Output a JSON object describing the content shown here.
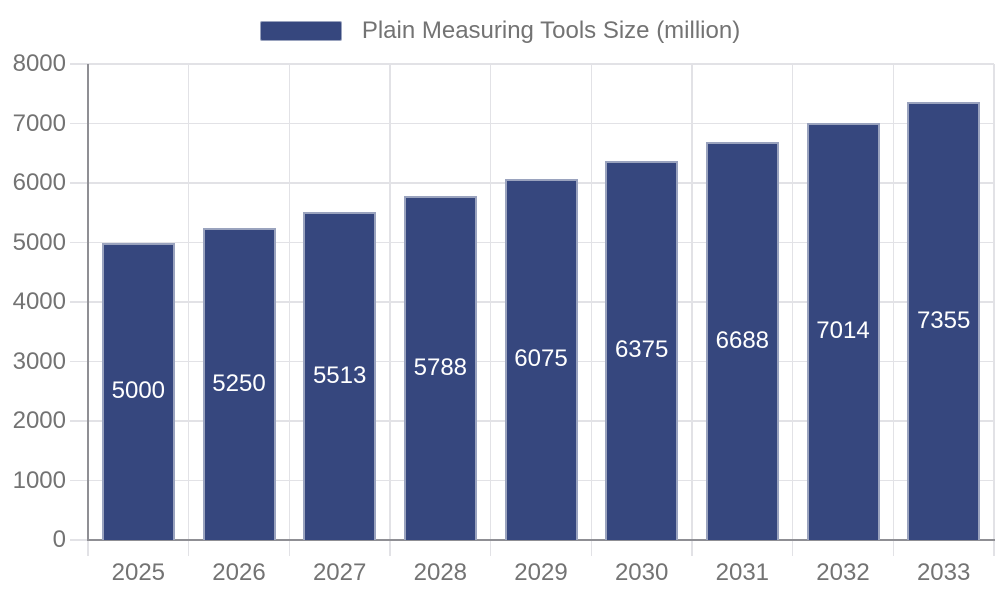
{
  "chart_data": {
    "type": "bar",
    "legend": "Plain Measuring Tools Size (million)",
    "categories": [
      "2025",
      "2026",
      "2027",
      "2028",
      "2029",
      "2030",
      "2031",
      "2032",
      "2033"
    ],
    "values": [
      5000,
      5250,
      5513,
      5788,
      6075,
      6375,
      6688,
      7014,
      7355
    ],
    "xlabel": "",
    "ylabel": "",
    "ylim": [
      0,
      8000
    ],
    "ytick_step": 1000,
    "grid": true,
    "legend_position": "top-center",
    "colors": {
      "bar": "#36477E",
      "bar_border": "#9AA3BE",
      "grid": "#E2E2E6",
      "axis": "#8F8F94",
      "tick_label": "#737373",
      "value_label": "#FFFFFF",
      "legend_text": "#737373"
    }
  }
}
